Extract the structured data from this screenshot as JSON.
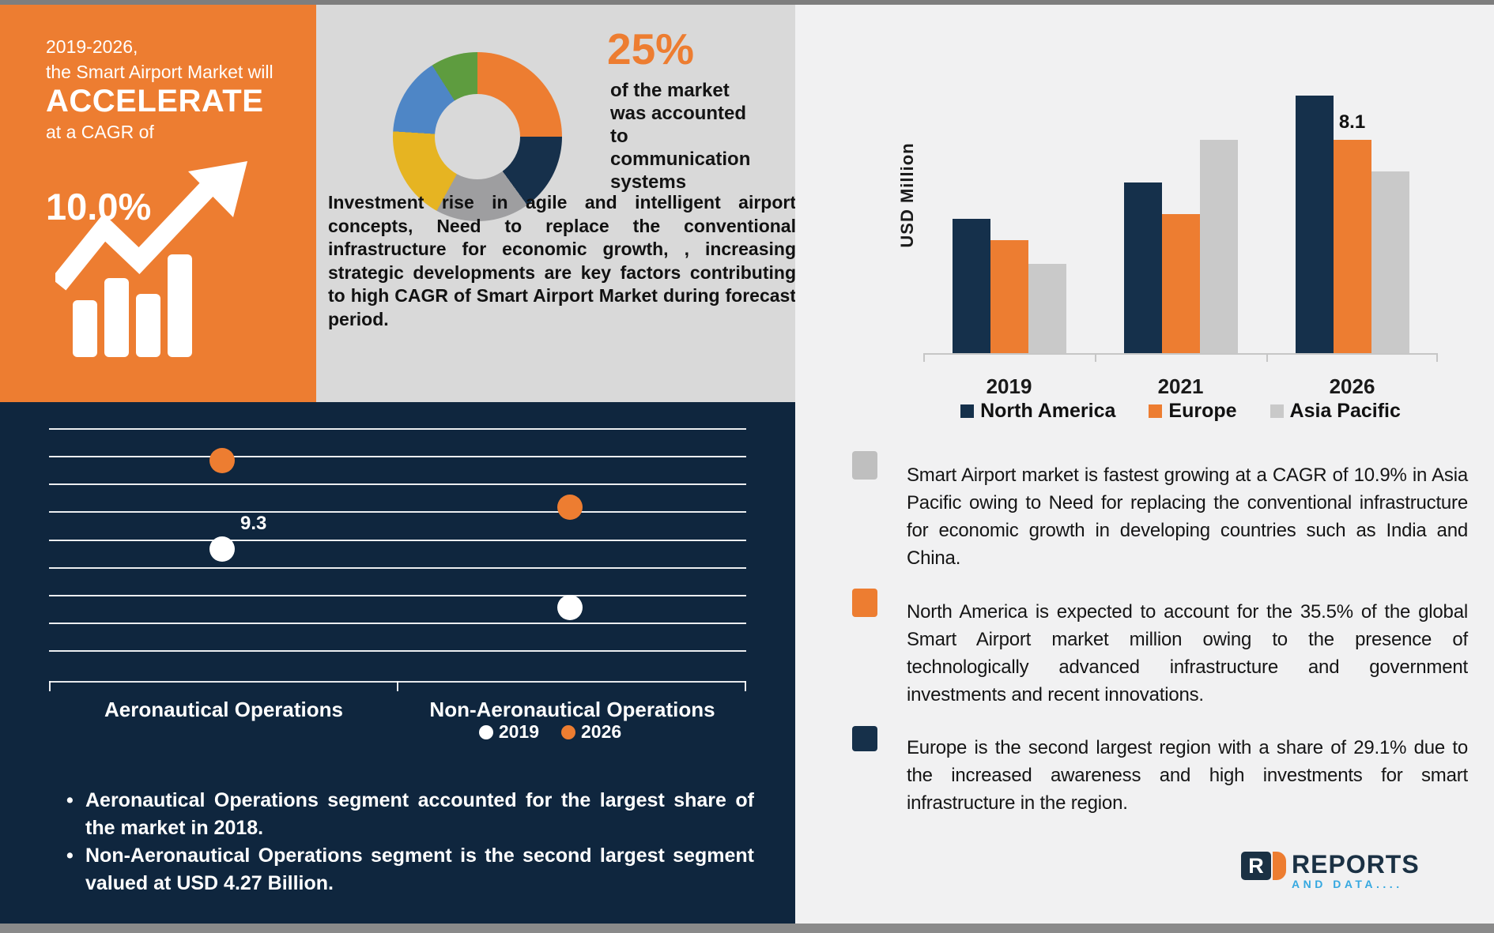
{
  "top_left": {
    "line1": "2019-2026,",
    "line2": "the Smart Airport  Market will",
    "line3": "ACCELERATE",
    "line4": "at a CAGR of",
    "cagr": "10.0%"
  },
  "intro": {
    "paragraph": "Investment rise in agile and intelligent airport concepts, Need to replace the conventional infrastructure for economic growth, , increasing strategic developments  are key factors contributing to high CAGR of Smart Airport Market during forecast period."
  },
  "segment_section": {
    "bullets": [
      "Aeronautical Operations segment accounted for the largest share of the market in 2018.",
      "Non-Aeronautical Operations segment is  the second largest segment valued at USD 4.27 Billion."
    ]
  },
  "regional_section": {
    "bullets": [
      {
        "color": "#BFBFBF",
        "text": "Smart Airport market is fastest growing at a CAGR of 10.9% in Asia Pacific owing to Need for replacing the conventional infrastructure for economic growth in developing countries such as India and China."
      },
      {
        "color": "#ED7D31",
        "text": "North America is expected to account for the 35.5% of the global Smart Airport market million owing to the presence of technologically advanced infrastructure and government investments and recent innovations."
      },
      {
        "color": "#16304A",
        "text": "Europe is the second largest region with a share of 29.1% due to the increased awareness and high investments for smart infrastructure  in the region."
      }
    ]
  },
  "logo": {
    "mark": "R",
    "reports": "REPORTS",
    "and_data": "AND DATA...."
  },
  "colors": {
    "orange": "#ED7D31",
    "navy_box": "#0F263E",
    "chart_navy": "#15304B",
    "gray_box": "#D9D9D9",
    "panel_bg": "#F1F1F2",
    "frame_gray": "#7E7E7E",
    "logo_blue": "#35A8E0"
  },
  "chart_data": [
    {
      "type": "bar",
      "categories": [
        "2019",
        "2021",
        "2026"
      ],
      "series": [
        {
          "name": "North America",
          "color": "#15304B",
          "values": [
            5.1,
            6.5,
            9.8
          ]
        },
        {
          "name": "Europe",
          "color": "#ED7D31",
          "values": [
            4.3,
            5.3,
            8.1
          ]
        },
        {
          "name": "Asia Pacific",
          "color": "#C9C9C9",
          "values": [
            3.4,
            8.1,
            6.9
          ]
        }
      ],
      "ylabel": "USD Million",
      "ylim": [
        0,
        10
      ],
      "grid": false,
      "legend_position": "bottom",
      "data_labels": [
        {
          "series": "Europe",
          "category": "2026",
          "text": "8.1",
          "value": 8.1
        }
      ]
    },
    {
      "type": "scatter",
      "categories": [
        "Aeronautical Operations",
        "Non-Aeronautical Operations"
      ],
      "series": [
        {
          "name": "2019",
          "color": "#FFFFFF"
        },
        {
          "name": "2026",
          "color": "#ED7D31"
        }
      ],
      "points": [
        {
          "category_index": 0,
          "series": "2026",
          "y_frac": 0.146
        },
        {
          "category_index": 1,
          "series": "2026",
          "y_frac": 0.356
        },
        {
          "category_index": 0,
          "series": "2019",
          "y_frac": 0.545,
          "value": 9.3,
          "label": "9.3"
        },
        {
          "category_index": 1,
          "series": "2019",
          "y_frac": 0.808
        }
      ],
      "grid": true,
      "legend_position": "bottom"
    },
    {
      "type": "pie",
      "donut": true,
      "annotation": {
        "value": "25%",
        "text": "of the market was accounted to communication systems"
      },
      "slices": [
        {
          "name": "communication systems",
          "color": "#ED7D31",
          "percent": 25
        },
        {
          "color": "#16304B",
          "percent": 15
        },
        {
          "color": "#9E9EA0",
          "percent": 18
        },
        {
          "color": "#E6B422",
          "percent": 18
        },
        {
          "color": "#4E86C6",
          "percent": 15
        },
        {
          "color": "#5E9C3F",
          "percent": 9
        }
      ]
    }
  ]
}
